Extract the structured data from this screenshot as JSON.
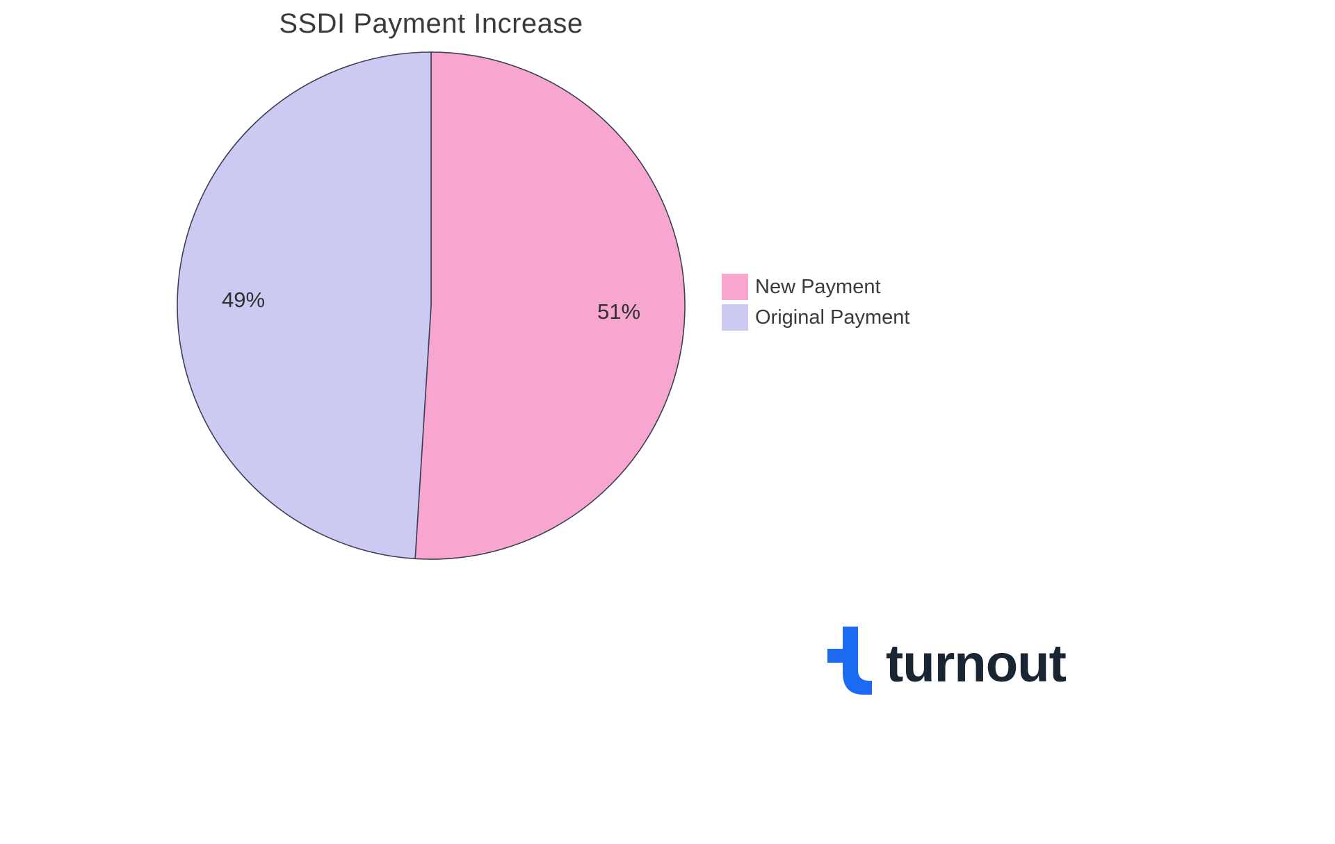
{
  "chart_data": {
    "type": "pie",
    "title": "SSDI Payment Increase",
    "labels": [
      "New Payment",
      "Original Payment"
    ],
    "values": [
      51,
      49
    ],
    "slice_labels": [
      "51%",
      "49%"
    ],
    "colors": [
      "#F7A6CF",
      "#CCC9F2"
    ],
    "stroke_color": "#3B3F54",
    "label_color": "#2f2f2f",
    "start_angle_deg": 0,
    "direction": "clockwise",
    "legend_position": "right",
    "legend_entries": [
      "New Payment",
      "Original Payment"
    ]
  },
  "legend": {
    "items": [
      {
        "label": "New Payment",
        "color": "#F7A6CF"
      },
      {
        "label": "Original Payment",
        "color": "#CCC9F2"
      }
    ]
  },
  "branding": {
    "logo_text": "turnout",
    "logo_color": "#1B6BF2",
    "text_color": "#1A2533"
  }
}
